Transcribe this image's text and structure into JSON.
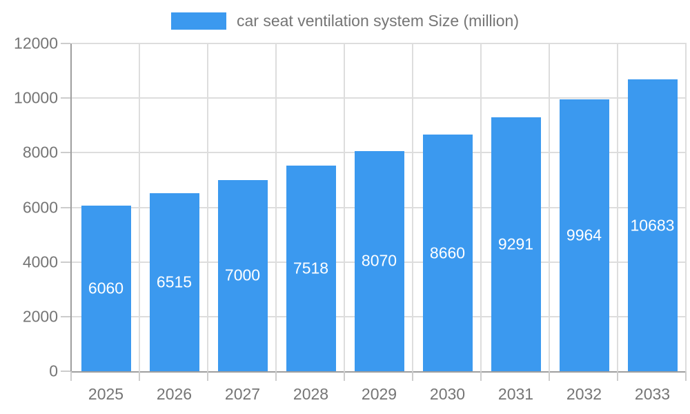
{
  "legend": {
    "label": "car seat ventilation system Size (million)"
  },
  "colors": {
    "bar": "#3b99ef",
    "axis_text": "#757575",
    "grid": "#dddddd",
    "axis_line": "#9e9e9e",
    "tick": "#cccccc",
    "value_label": "#ffffff",
    "background": "#ffffff"
  },
  "chart_data": {
    "type": "bar",
    "title": "",
    "series_name": "car seat ventilation system Size (million)",
    "categories": [
      "2025",
      "2026",
      "2027",
      "2028",
      "2029",
      "2030",
      "2031",
      "2032",
      "2033"
    ],
    "values": [
      6060,
      6515,
      7000,
      7518,
      8070,
      8660,
      9291,
      9964,
      10683
    ],
    "xlabel": "",
    "ylabel": "",
    "ylim": [
      0,
      12000
    ],
    "ytick_step": 2000,
    "yticks": [
      0,
      2000,
      4000,
      6000,
      8000,
      10000,
      12000
    ],
    "grid": true,
    "legend_position": "top",
    "value_label_position": "inside-center"
  }
}
